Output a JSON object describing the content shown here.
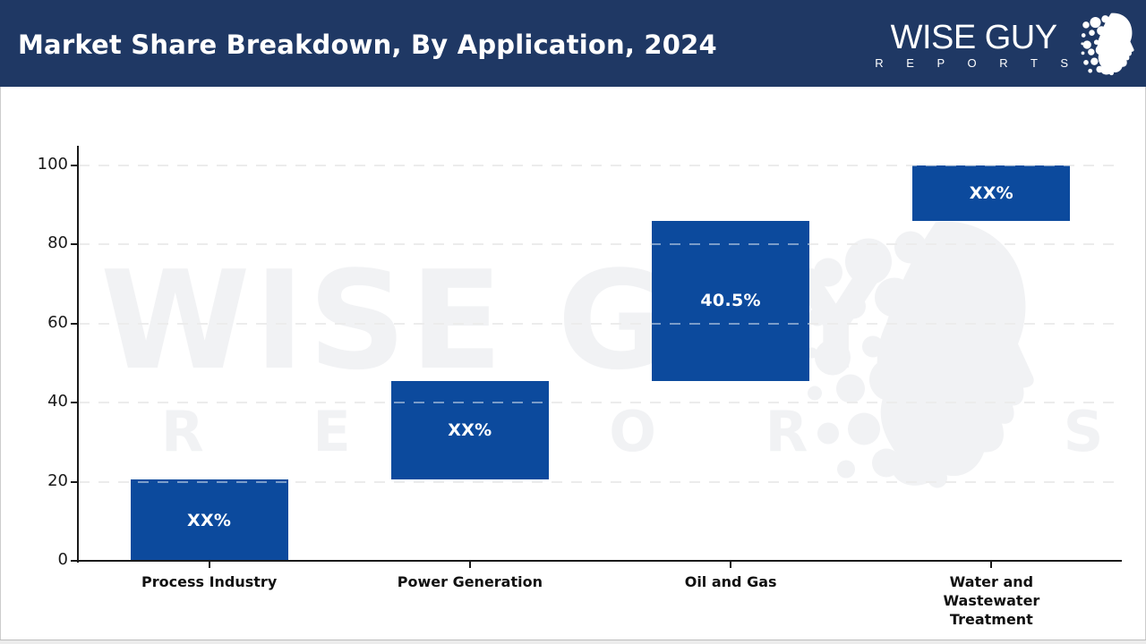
{
  "header": {
    "title": "Market Share Breakdown, By Application, 2024",
    "logo": {
      "line1": "WISE GUY",
      "line2": "R E P O R T S"
    }
  },
  "watermark": {
    "line1": "WISE GUY",
    "line2": "R E P O R T S"
  },
  "colors": {
    "header_bg": "#1f3864",
    "bar": "#0c4a9d",
    "grid": "#dcdcdc",
    "axis": "#1a1a1a",
    "watermark": "#f1f2f4",
    "title_text": "#ffffff",
    "bar_label_text": "#ffffff"
  },
  "chart_data": {
    "type": "bar",
    "subtype": "floating-waterfall",
    "title": "Market Share Breakdown, By Application, 2024",
    "categories": [
      "Process Industry",
      "Power Generation",
      "Oil and Gas",
      "Water and Wastewater Treatment"
    ],
    "values": [
      20.5,
      25,
      40.5,
      14
    ],
    "segments": [
      [
        0,
        20.5
      ],
      [
        20.5,
        45.5
      ],
      [
        45.5,
        86
      ],
      [
        86,
        100
      ]
    ],
    "bar_labels": [
      "XX%",
      "XX%",
      "40.5%",
      "XX%"
    ],
    "xlabel": "",
    "ylabel": "",
    "ylim": [
      0,
      100
    ],
    "yticks": [
      0,
      20,
      40,
      60,
      80,
      100
    ],
    "grid": "horizontal-dashed",
    "legend": "none",
    "bar_color": "#0c4a9d"
  }
}
